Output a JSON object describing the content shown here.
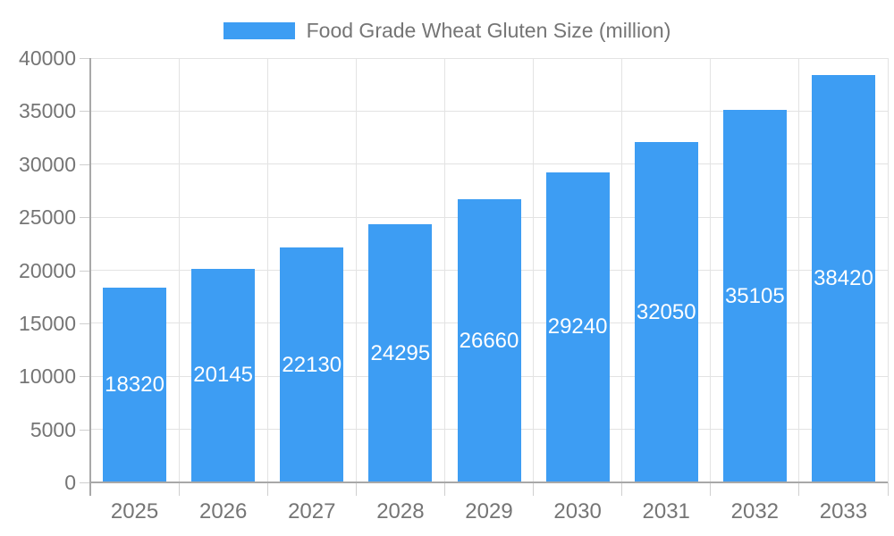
{
  "chart_data": {
    "type": "bar",
    "title": "Food Grade Wheat Gluten Size (million)",
    "legend": [
      "Food Grade Wheat Gluten Size (million)"
    ],
    "legend_position": "top",
    "categories": [
      "2025",
      "2026",
      "2027",
      "2028",
      "2029",
      "2030",
      "2031",
      "2032",
      "2033"
    ],
    "series": [
      {
        "name": "Food Grade Wheat Gluten Size (million)",
        "values": [
          18320,
          20145,
          22130,
          24295,
          26660,
          29240,
          32050,
          35105,
          38420
        ]
      }
    ],
    "values": [
      18320,
      20145,
      22130,
      24295,
      26660,
      29240,
      32050,
      35105,
      38420
    ],
    "value_labels": "inside-center",
    "xlabel": "",
    "ylabel": "",
    "ylim": [
      0,
      40000
    ],
    "yticks": [
      0,
      5000,
      10000,
      15000,
      20000,
      25000,
      30000,
      35000,
      40000
    ],
    "grid": true,
    "colors": {
      "bar": "#3D9DF3",
      "axis_line": "#a8a8a8",
      "gridline": "#e3e3e3",
      "tick": "#cfcfcf",
      "axis_text": "#757575",
      "value_label_text": "#ffffff",
      "background": "#ffffff"
    }
  }
}
